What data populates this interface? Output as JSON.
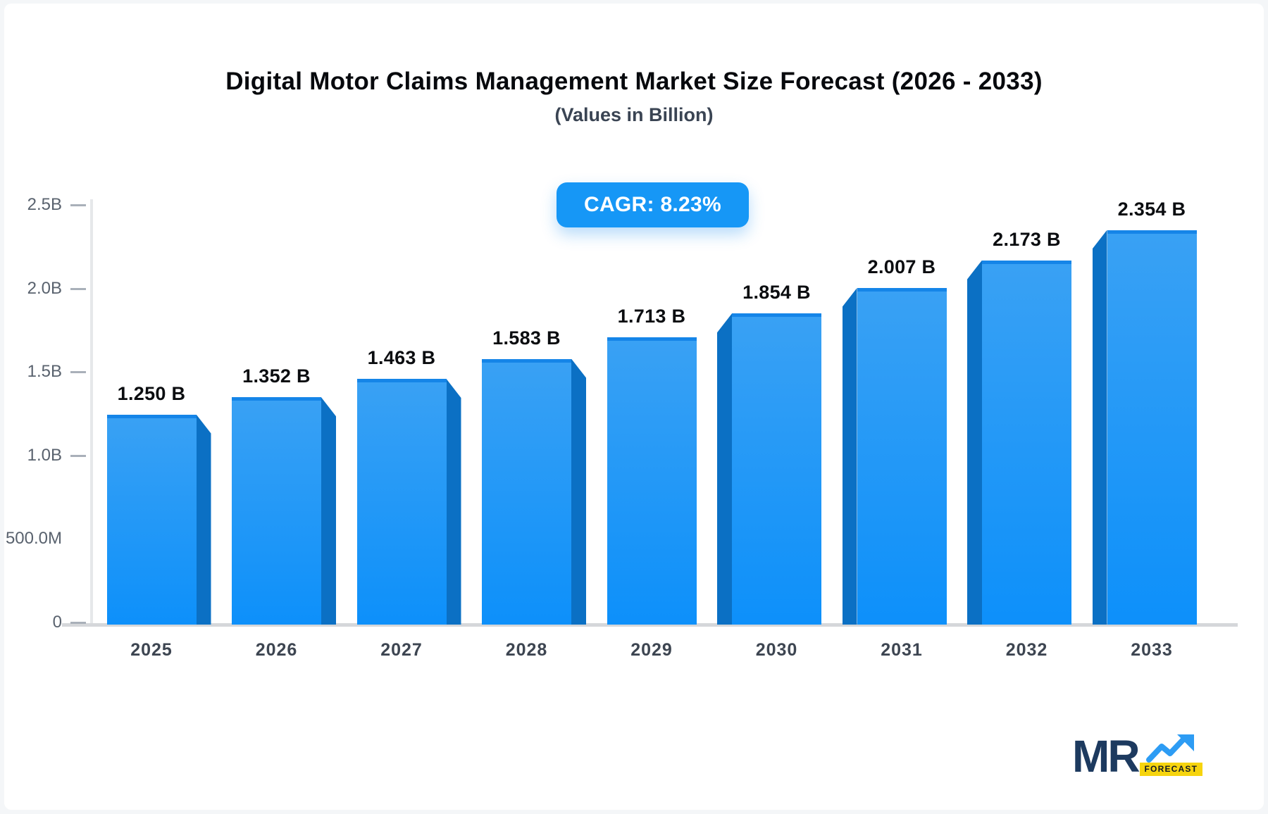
{
  "header": {
    "title": "Digital Motor Claims Management Market Size Forecast (2026 - 2033)",
    "subtitle": "(Values in Billion)",
    "cagr_badge": "CAGR: 8.23%"
  },
  "logo": {
    "name": "MR Forecast",
    "mr": "MR",
    "forecast": "FORECAST"
  },
  "colors": {
    "badge_bg": "#1697f6",
    "bar_front_top": "#39a1f4",
    "bar_front_bottom": "#0d90fa",
    "bar_side": "#0b70c4",
    "bar_top_edge": "#1585e8",
    "axis_line": "#e6e8ea",
    "baseline": "#d5d7da",
    "tick_text": "#59626e",
    "xlabel_text": "#3d4551",
    "logo_navy": "#1d3a5f",
    "logo_blue": "#2d9cf4",
    "logo_yellow": "#f6d40e"
  },
  "chart_data": {
    "type": "bar",
    "title": "Digital Motor Claims Management Market Size Forecast (2026 - 2033)",
    "subtitle": "(Values in Billion)",
    "xlabel": "",
    "ylabel": "",
    "unit": "Billion USD",
    "categories": [
      "2025",
      "2026",
      "2027",
      "2028",
      "2029",
      "2030",
      "2031",
      "2032",
      "2033"
    ],
    "values": [
      1.25,
      1.352,
      1.463,
      1.583,
      1.713,
      1.854,
      2.007,
      2.173,
      2.354
    ],
    "value_labels": [
      "1.250 B",
      "1.352 B",
      "1.463 B",
      "1.583 B",
      "1.713 B",
      "1.854 B",
      "2.007 B",
      "2.173 B",
      "2.354 B"
    ],
    "ylim": [
      0,
      2.5
    ],
    "yticks": [
      {
        "value": 2.5,
        "label": "2.5B",
        "dash": true
      },
      {
        "value": 2.0,
        "label": "2.0B",
        "dash": true
      },
      {
        "value": 1.5,
        "label": "1.5B",
        "dash": true
      },
      {
        "value": 1.0,
        "label": "1.0B",
        "dash": true
      },
      {
        "value": 0.5,
        "label": "500.0M",
        "dash": false
      },
      {
        "value": 0,
        "label": "0",
        "dash": true
      }
    ],
    "grid": false,
    "legend": null,
    "style": "3d-beveled-bars, perspective toward center"
  }
}
